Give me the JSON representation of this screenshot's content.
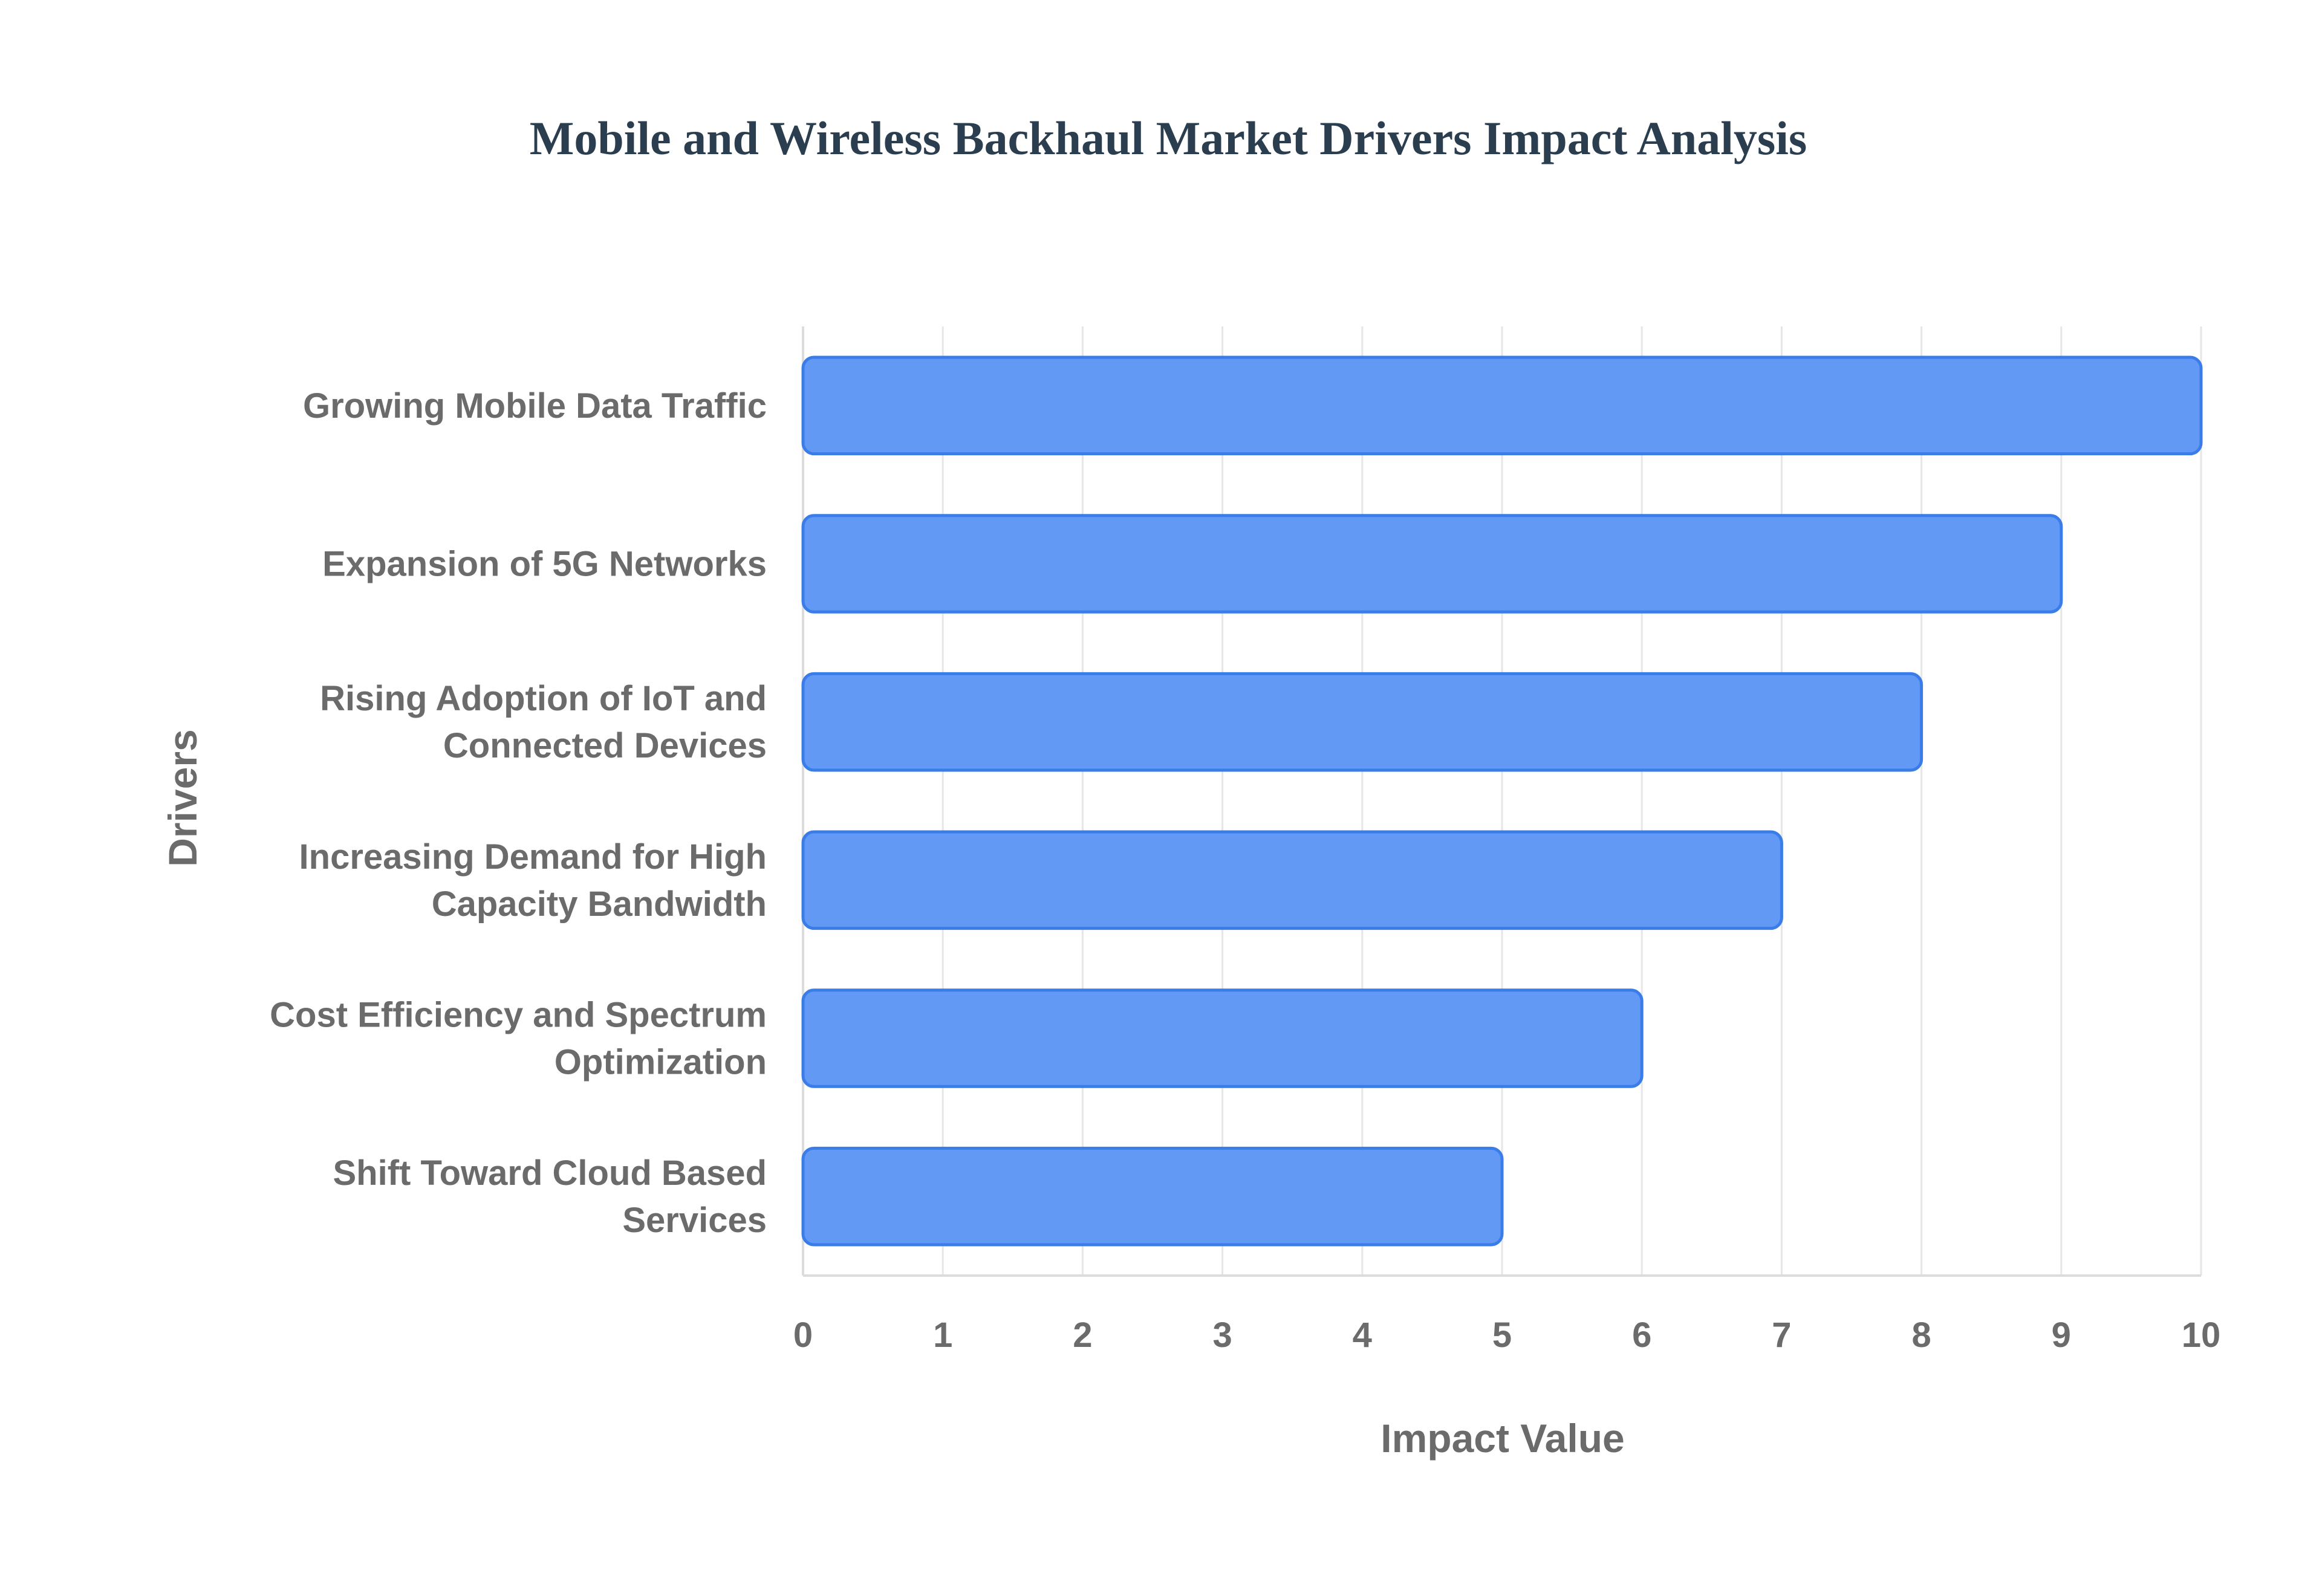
{
  "chart_data": {
    "type": "bar",
    "orientation": "horizontal",
    "title": "Mobile and Wireless Backhaul Market Drivers Impact Analysis",
    "xlabel": "Impact Value",
    "ylabel": "Drivers",
    "xlim": [
      0,
      10
    ],
    "x_ticks": [
      "0",
      "1",
      "2",
      "3",
      "4",
      "5",
      "6",
      "7",
      "8",
      "9",
      "10"
    ],
    "grid": true,
    "legend": "none",
    "categories": [
      [
        "Growing Mobile Data Traffic"
      ],
      [
        "Expansion of 5G Networks"
      ],
      [
        "Rising Adoption of IoT and",
        "Connected Devices"
      ],
      [
        "Increasing Demand for High",
        "Capacity Bandwidth"
      ],
      [
        "Cost Efficiency and Spectrum",
        "Optimization"
      ],
      [
        "Shift Toward Cloud Based",
        "Services"
      ]
    ],
    "values": [
      10,
      9,
      8,
      7,
      6,
      5
    ],
    "colors": {
      "bar_fill": "#6199f5",
      "bar_stroke": "#3b7de8",
      "title": "#2b3e50",
      "text": "#6b6b6b"
    }
  }
}
